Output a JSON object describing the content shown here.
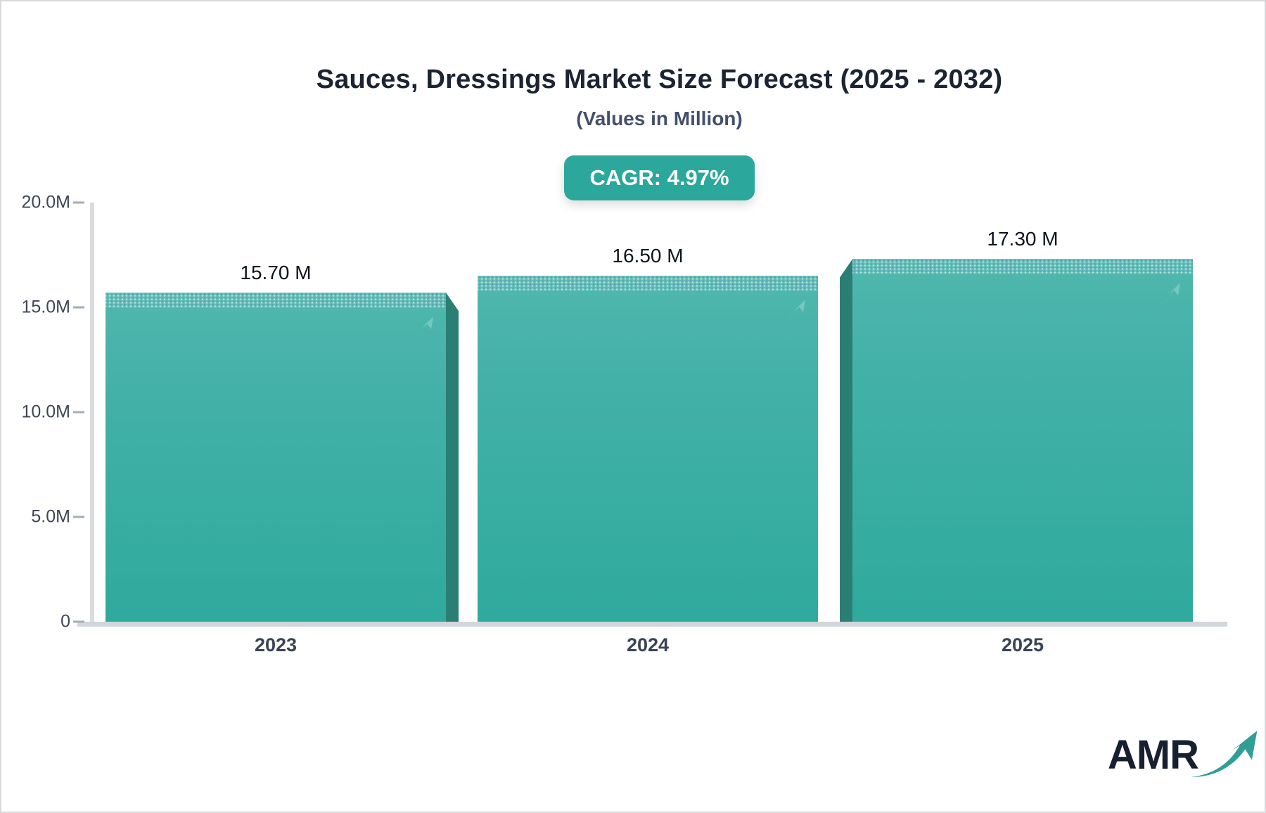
{
  "chart_data": {
    "type": "bar",
    "title": "Sauces, Dressings Market Size Forecast (2025 - 2032)",
    "subtitle": "(Values in Million)",
    "badge": "CAGR: 4.97%",
    "categories": [
      "2023",
      "2024",
      "2025"
    ],
    "values": [
      15.7,
      16.5,
      17.3
    ],
    "value_labels": [
      "15.70 M",
      "16.50 M",
      "17.30 M"
    ],
    "xlabel": "",
    "ylabel": "",
    "ylim": [
      0,
      20
    ],
    "yticks": [
      {
        "label": "20.0M",
        "value": 20
      },
      {
        "label": "15.0M",
        "value": 15
      },
      {
        "label": "10.0M",
        "value": 10
      },
      {
        "label": "5.0M",
        "value": 5
      },
      {
        "label": "0",
        "value": 0
      }
    ],
    "grid": false,
    "legend": "none",
    "colors": {
      "bar_top": "#4fb7ae",
      "bar_bottom": "#2faa9d",
      "bar_side": "#2b7e74",
      "badge_bg": "#2ba79c",
      "badge_text": "#ffffff",
      "axis": "#d5d8dc",
      "title": "#1c2433",
      "subtitle": "#44506b"
    }
  },
  "branding": {
    "logo_text": "AMR"
  }
}
